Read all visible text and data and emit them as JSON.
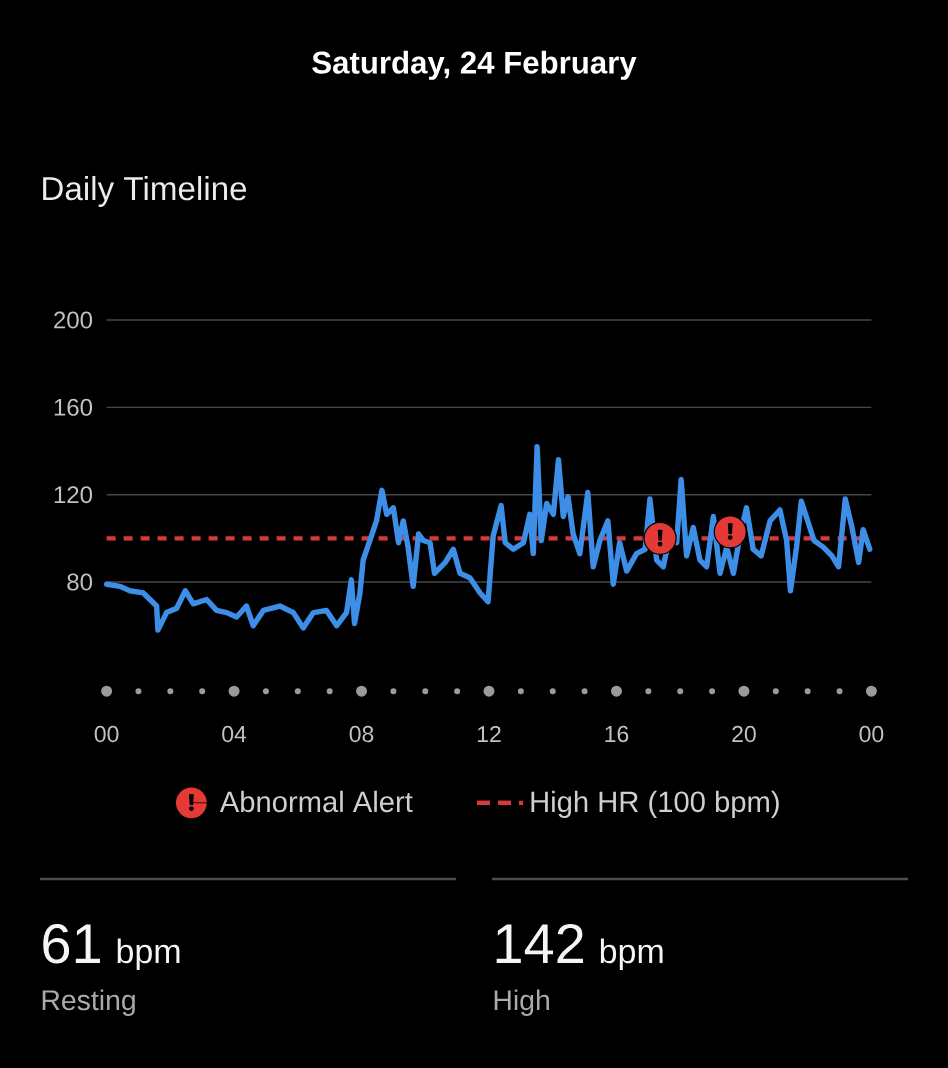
{
  "chart_data": {
    "type": "line",
    "title": "Saturday, 24 February",
    "subtitle": "Daily Timeline",
    "xlim": [
      0,
      24
    ],
    "xticks": [
      {
        "value": 0,
        "label": "00"
      },
      {
        "value": 4,
        "label": "04"
      },
      {
        "value": 8,
        "label": "08"
      },
      {
        "value": 12,
        "label": "12"
      },
      {
        "value": 16,
        "label": "16"
      },
      {
        "value": 20,
        "label": "20"
      },
      {
        "value": 24,
        "label": "00"
      }
    ],
    "ylim": [
      30,
      200
    ],
    "yticks": [
      80,
      120,
      160,
      200
    ],
    "grid": "y",
    "legend": "bottom",
    "series": [
      {
        "color": "#3d8ee6",
        "line_style": "solid",
        "marker": "none",
        "x": [
          0,
          0.42,
          0.73,
          1.15,
          1.57,
          1.61,
          1.88,
          2.2,
          2.47,
          2.72,
          3.14,
          3.45,
          3.77,
          4.08,
          4.39,
          4.6,
          4.92,
          5.44,
          5.86,
          6.17,
          6.49,
          6.9,
          7.22,
          7.53,
          7.68,
          7.78,
          7.95,
          8.05,
          8.26,
          8.47,
          8.64,
          8.79,
          9.0,
          9.16,
          9.31,
          9.46,
          9.62,
          9.79,
          9.94,
          10.15,
          10.29,
          10.63,
          10.88,
          11.09,
          11.4,
          11.72,
          11.97,
          12.13,
          12.38,
          12.51,
          12.76,
          13.08,
          13.28,
          13.39,
          13.51,
          13.64,
          13.81,
          14.02,
          14.18,
          14.33,
          14.48,
          14.64,
          14.85,
          15.1,
          15.27,
          15.48,
          15.73,
          15.9,
          16.1,
          16.32,
          16.63,
          16.9,
          17.05,
          17.26,
          17.47,
          17.68,
          17.89,
          18.03,
          18.2,
          18.41,
          18.62,
          18.83,
          19.04,
          19.25,
          19.46,
          19.67,
          19.87,
          20.08,
          20.29,
          20.54,
          20.82,
          21.13,
          21.34,
          21.46,
          21.65,
          21.8,
          22.0,
          22.2,
          22.49,
          22.76,
          22.97,
          23.18,
          23.39,
          23.6,
          23.74,
          23.95
        ],
        "values": [
          79,
          78,
          76,
          75,
          69,
          58,
          66,
          68,
          76,
          70,
          72,
          67,
          66,
          64,
          69,
          60,
          67,
          69,
          66,
          59,
          66,
          67,
          60,
          66,
          81,
          61,
          75,
          90,
          99,
          108,
          122,
          111,
          114,
          98,
          108,
          96,
          78,
          102,
          99,
          98,
          84,
          89,
          95,
          84,
          82,
          75,
          71,
          101,
          115,
          98,
          95,
          98,
          111,
          93,
          142,
          99,
          116,
          111,
          136,
          110,
          119,
          102,
          93,
          121,
          87,
          99,
          108,
          79,
          98,
          85,
          93,
          95,
          118,
          90,
          87,
          102,
          98,
          127,
          92,
          105,
          90,
          87,
          110,
          84,
          96,
          84,
          101,
          114,
          95,
          92,
          108,
          113,
          99,
          76,
          96,
          117,
          108,
          99,
          96,
          92,
          87,
          118,
          105,
          89,
          104,
          95
        ]
      },
      {
        "type": "scatter",
        "name": "Abnormal Alert",
        "color": "#e53935",
        "x": [
          17.37,
          19.57
        ],
        "values": [
          100,
          103
        ]
      }
    ],
    "ref_lines": [
      {
        "axis": "y",
        "value": 100,
        "label": "High HR (100 bpm)",
        "color": "#d63a3a",
        "line_style": "dashed"
      }
    ],
    "annotations": [
      "61",
      "bpm",
      "Resting",
      "142",
      "bpm",
      "High"
    ]
  }
}
